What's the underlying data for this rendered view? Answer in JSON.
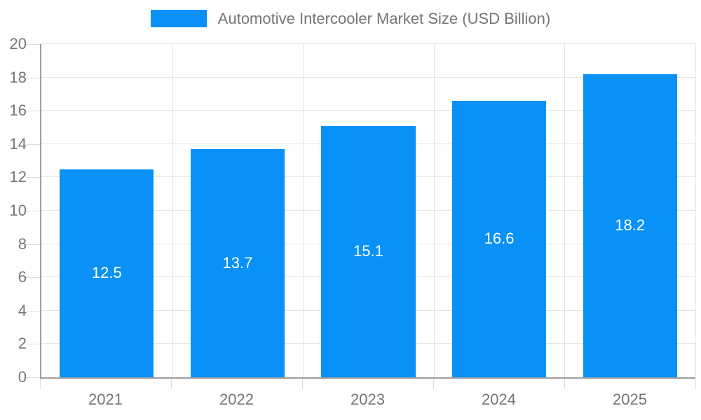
{
  "legend": {
    "label": "Automotive Intercooler Market Size (USD Billion)"
  },
  "chart_data": {
    "type": "bar",
    "title": "Automotive Intercooler Market Size (USD Billion)",
    "categories": [
      "2021",
      "2022",
      "2023",
      "2024",
      "2025"
    ],
    "values": [
      12.5,
      13.7,
      15.1,
      16.6,
      18.2
    ],
    "value_labels": [
      "12.5",
      "13.7",
      "15.1",
      "16.6",
      "18.2"
    ],
    "xlabel": "",
    "ylabel": "",
    "ylim": [
      0,
      20
    ],
    "ytick_step": 2,
    "ytick_labels": [
      "0",
      "2",
      "4",
      "6",
      "8",
      "10",
      "12",
      "14",
      "16",
      "18",
      "20"
    ],
    "grid": true,
    "legend_position": "top",
    "colors": {
      "bar": "#0991F7",
      "value_label": "#ffffff",
      "axis_line": "#9e9e9e",
      "gridline": "#e3e3e3",
      "tick": "#dcdcdc",
      "text": "#757575"
    }
  }
}
